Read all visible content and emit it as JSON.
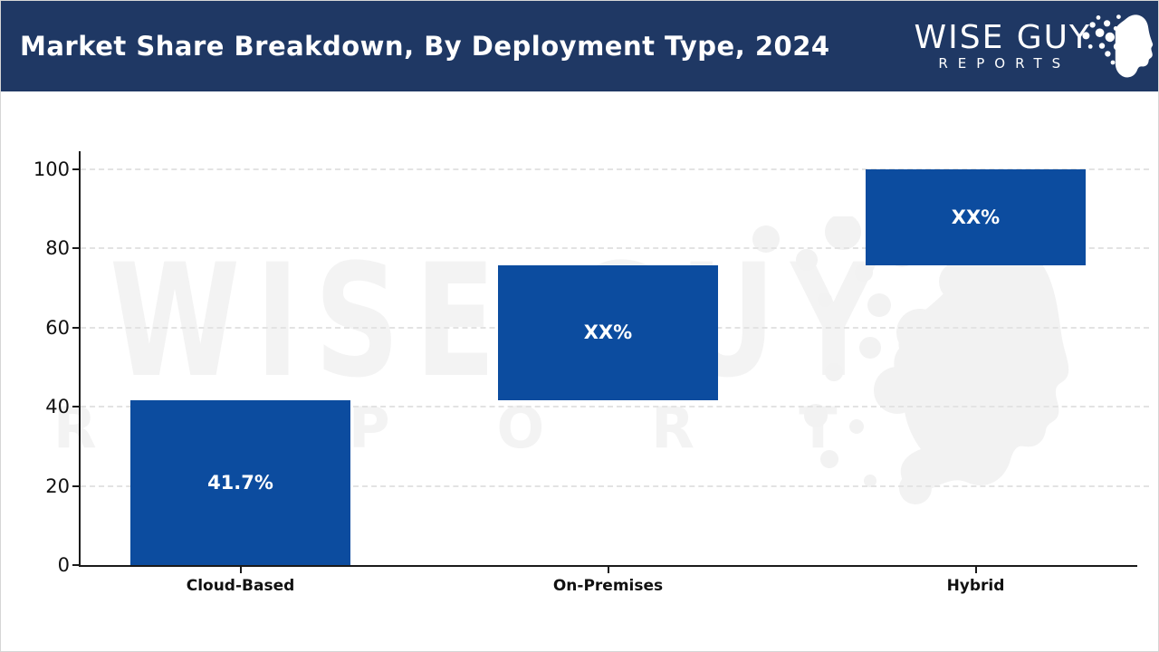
{
  "header": {
    "title": "Market Share Breakdown, By Deployment Type, 2024",
    "logo": {
      "wordmark": "WISE GUY",
      "subtext": "REPORTS"
    }
  },
  "watermark": {
    "wordmark": "WISE GUY",
    "subtext": "REPORTS"
  },
  "chart_data": {
    "type": "bar",
    "subtype": "floating-stacked-percentage",
    "title": "Market Share Breakdown, By Deployment Type, 2024",
    "categories": [
      "Cloud-Based",
      "On-Premises",
      "Hybrid"
    ],
    "segments": [
      {
        "category": "Cloud-Based",
        "start": 0,
        "end": 41.7,
        "label": "41.7%"
      },
      {
        "category": "On-Premises",
        "start": 41.7,
        "end": 75.8,
        "label": "XX%"
      },
      {
        "category": "Hybrid",
        "start": 75.8,
        "end": 100,
        "label": "XX%"
      }
    ],
    "xlabel": "",
    "ylabel": "",
    "ylim": [
      0,
      100
    ],
    "yticks": [
      0,
      20,
      40,
      60,
      80,
      100
    ],
    "grid": "dashed-horizontal",
    "legend": "none",
    "bar_color": "#0c4c9f",
    "bar_label_color": "#ffffff",
    "header_color": "#1f3864",
    "watermark_color": "#f3f3f3"
  }
}
